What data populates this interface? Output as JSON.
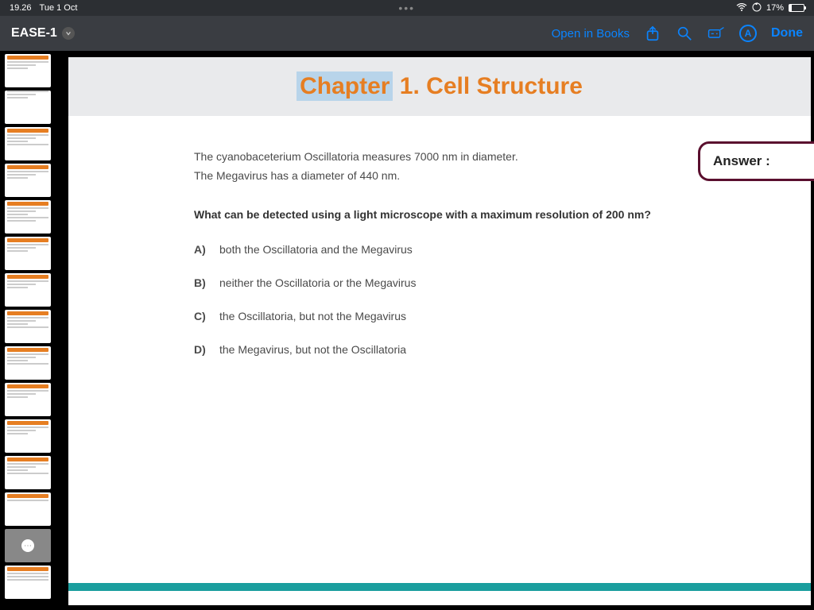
{
  "status": {
    "time": "19.26",
    "date": "Tue 1 Oct",
    "battery_pct": "17%",
    "dots": "•••"
  },
  "toolbar": {
    "doc_title": "EASE-1",
    "open_books": "Open in Books",
    "done": "Done",
    "circle_letter": "A"
  },
  "page": {
    "chapter_label": "Chapter",
    "chapter_rest": " 1. Cell Structure",
    "title_color": "#e67e22",
    "highlight_color": "#b8d4ea",
    "header_bg": "#e9eaec",
    "stem_line1": "The cyanobaceterium Oscillatoria measures 7000 nm in diameter.",
    "stem_line2": "The Megavirus has a diameter of 440 nm.",
    "question": "What can be detected using a light microscope with a maximum resolution of 200 nm?",
    "options": [
      {
        "letter": "A)",
        "text": "both the Oscillatoria and the Megavirus"
      },
      {
        "letter": "B)",
        "text": "neither the Oscillatoria or the Megavirus"
      },
      {
        "letter": "C)",
        "text": "the Oscillatoria, but not the Megavirus"
      },
      {
        "letter": "D)",
        "text": "the Megavirus, but not the Oscillatoria"
      }
    ],
    "answer_label": "Answer :",
    "answer_border": "#5a0f2e",
    "teal_strip": "#1a9e9e"
  },
  "thumbs": {
    "count": 15
  },
  "colors": {
    "ios_blue": "#0a84ff",
    "toolbar_bg": "#3a3d42",
    "status_bg": "#2c2f33"
  }
}
